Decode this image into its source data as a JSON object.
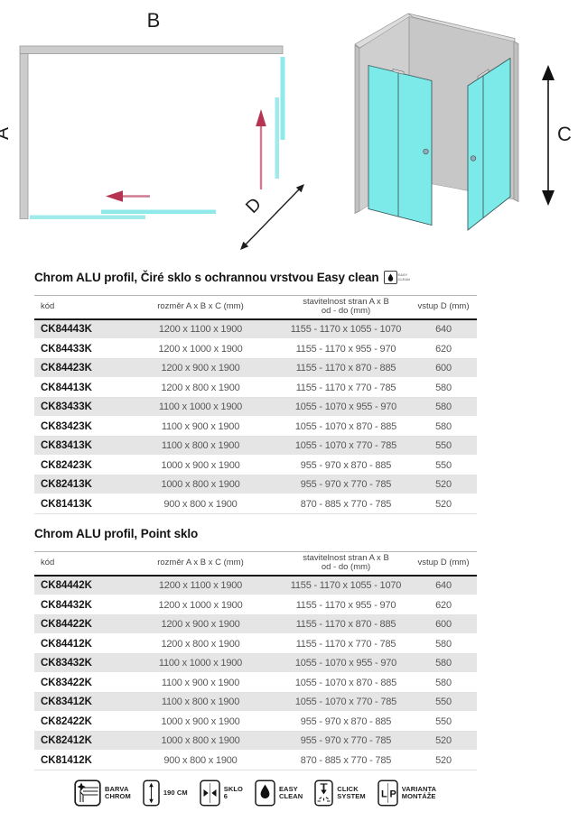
{
  "diagram": {
    "plan": {
      "width_label": "B",
      "side_label": "A",
      "entry_label": "D"
    },
    "iso": {
      "height_label": "C"
    }
  },
  "sections": [
    {
      "title": "Chrom ALU profil, Čiré sklo s ochrannou vrstvou Easy clean",
      "badge": {
        "line1": "EASY",
        "line2": "CLEAN"
      },
      "columns": [
        {
          "label": "kód"
        },
        {
          "label": "rozměr A x B x C (mm)"
        },
        {
          "label": "stavitelnost stran A x B",
          "label2": "od - do (mm)"
        },
        {
          "label": "vstup D (mm)"
        }
      ],
      "rows": [
        [
          "CK84443K",
          "1200 x 1100 x 1900",
          "1155 - 1170 x 1055 - 1070",
          "640"
        ],
        [
          "CK84433K",
          "1200 x 1000 x 1900",
          "1155 - 1170 x 955 - 970",
          "620"
        ],
        [
          "CK84423K",
          "1200 x 900 x 1900",
          "1155 - 1170 x 870 - 885",
          "600"
        ],
        [
          "CK84413K",
          "1200 x 800 x 1900",
          "1155 - 1170 x 770 - 785",
          "580"
        ],
        [
          "CK83433K",
          "1100 x 1000 x 1900",
          "1055 - 1070 x 955 - 970",
          "580"
        ],
        [
          "CK83423K",
          "1100 x 900 x 1900",
          "1055 - 1070 x 870 - 885",
          "580"
        ],
        [
          "CK83413K",
          "1100 x 800 x 1900",
          "1055 - 1070 x 770 - 785",
          "550"
        ],
        [
          "CK82423K",
          "1000 x 900 x 1900",
          "955 - 970 x 870 - 885",
          "550"
        ],
        [
          "CK82413K",
          "1000 x 800 x 1900",
          "955 - 970 x 770 - 785",
          "520"
        ],
        [
          "CK81413K",
          "900 x 800 x 1900",
          "870 - 885 x 770 - 785",
          "520"
        ]
      ]
    },
    {
      "title": "Chrom ALU profil, Point sklo",
      "columns": [
        {
          "label": "kód"
        },
        {
          "label": "rozměr A x B x C (mm)"
        },
        {
          "label": "stavitelnost stran A x B",
          "label2": "od - do (mm)"
        },
        {
          "label": "vstup D (mm)"
        }
      ],
      "rows": [
        [
          "CK84442K",
          "1200 x 1100 x 1900",
          "1155 - 1170 x 1055 - 1070",
          "640"
        ],
        [
          "CK84432K",
          "1200 x 1000 x 1900",
          "1155 - 1170 x 955 - 970",
          "620"
        ],
        [
          "CK84422K",
          "1200 x 900 x 1900",
          "1155 - 1170 x 870 - 885",
          "600"
        ],
        [
          "CK84412K",
          "1200 x 800 x 1900",
          "1155 - 1170 x 770 - 785",
          "580"
        ],
        [
          "CK83432K",
          "1100 x 1000 x 1900",
          "1055 - 1070 x 955 - 970",
          "580"
        ],
        [
          "CK83422K",
          "1100 x 900 x 1900",
          "1055 - 1070 x 870 - 885",
          "580"
        ],
        [
          "CK83412K",
          "1100 x 800 x 1900",
          "1055 - 1070 x 770 - 785",
          "550"
        ],
        [
          "CK82422K",
          "1000 x 900 x 1900",
          "955 - 970 x 870 - 885",
          "550"
        ],
        [
          "CK82412K",
          "1000 x 800 x 1900",
          "955 - 970 x 770 - 785",
          "520"
        ],
        [
          "CK81412K",
          "900 x 800 x 1900",
          "870 - 885 x 770 - 785",
          "520"
        ]
      ]
    }
  ],
  "footer": {
    "items": [
      {
        "icon": "chrome-corner-icon",
        "label": "BARVA",
        "label2": "CHROM"
      },
      {
        "icon": "height-arrow-icon",
        "label": "190 CM"
      },
      {
        "icon": "glass-thickness-icon",
        "label": "SKLO",
        "label2": "6"
      },
      {
        "icon": "droplet-icon",
        "label": "EASY",
        "label2": "CLEAN"
      },
      {
        "icon": "click-arrow-icon",
        "label": "CLICK",
        "label2": "SYSTEM"
      },
      {
        "icon": "lp-letters-icon",
        "label": "VARIANTA",
        "label2": "MONTÁŽE"
      }
    ]
  },
  "colors": {
    "glass_cyan": "#7deaea",
    "wall_gray": "#cdcdcd",
    "arrow_pink": "#b63352",
    "row_shade": "#e5e5e5"
  }
}
